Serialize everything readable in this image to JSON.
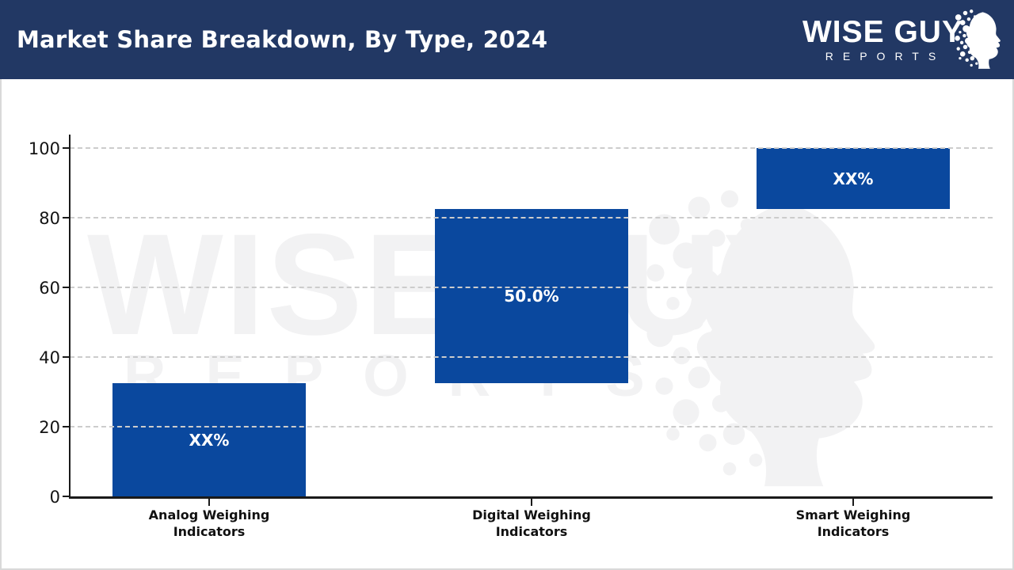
{
  "header": {
    "title": "Market Share Breakdown, By Type, 2024",
    "logo_line1": "WISE GUY",
    "logo_line2": "REPORTS"
  },
  "watermark": {
    "line1": "WISE GUY",
    "line2": "REPORTS"
  },
  "colors": {
    "header_bg": "#223864",
    "bar": "#0A489E",
    "grid": "#CCCCCC",
    "axis": "#1A1A1A",
    "bar_label_text": "#FFFFFF",
    "watermark": "#F2F2F3"
  },
  "chart_data": {
    "type": "bar",
    "subtype": "waterfall",
    "title": "Market Share Breakdown, By Type, 2024",
    "xlabel": "",
    "ylabel": "",
    "ylim": [
      0,
      105
    ],
    "yticks": [
      0,
      20,
      40,
      60,
      80,
      100
    ],
    "grid": "horizontal-dashed",
    "legend": "none",
    "categories": [
      "Analog Weighing\nIndicators",
      "Digital Weighing\nIndicators",
      "Smart Weighing\nIndicators"
    ],
    "bars": [
      {
        "category": "Analog Weighing Indicators",
        "start": 0,
        "end": 32.5,
        "value": 32.5,
        "label": "XX%"
      },
      {
        "category": "Digital Weighing Indicators",
        "start": 32.5,
        "end": 82.5,
        "value": 50.0,
        "label": "50.0%"
      },
      {
        "category": "Smart Weighing Indicators",
        "start": 82.5,
        "end": 100,
        "value": 17.5,
        "label": "XX%"
      }
    ]
  }
}
